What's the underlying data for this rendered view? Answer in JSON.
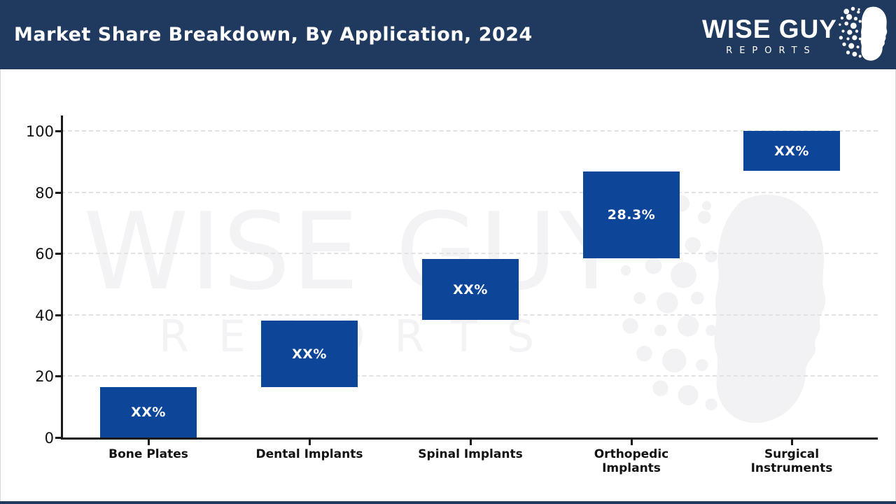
{
  "header": {
    "title": "Market Share Breakdown, By Application, 2024",
    "logo": {
      "line1": "WISE GUY",
      "line2": "REPORTS"
    }
  },
  "watermark": {
    "line1": "WISE GUY",
    "line2": "REPORTS"
  },
  "colors": {
    "header_bg": "#20395f",
    "bar": "#0d4598",
    "gridline": "#e2e2e2",
    "axis": "#1a1a1a",
    "bar_label": "#ffffff",
    "watermark": "#f3f3f5"
  },
  "chart_data": {
    "type": "bar",
    "subtype": "waterfall (floating segment bars stacking to 100%)",
    "title": "Market Share Breakdown, By Application, 2024",
    "xlabel": "",
    "ylabel": "",
    "ylim": [
      0,
      100
    ],
    "yticks": [
      0,
      20,
      40,
      60,
      80,
      100
    ],
    "grid": "horizontal dashed",
    "legend": "none",
    "categories": [
      "Bone Plates",
      "Dental Implants",
      "Spinal Implants",
      "Orthopedic Implants",
      "Surgical Instruments"
    ],
    "category_lines": [
      [
        "Bone Plates"
      ],
      [
        "Dental Implants"
      ],
      [
        "Spinal Implants"
      ],
      [
        "Orthopedic",
        "Implants"
      ],
      [
        "Surgical",
        "Instruments"
      ]
    ],
    "bars": [
      {
        "category": "Bone Plates",
        "start": 0,
        "end": 16.4,
        "label": "XX%"
      },
      {
        "category": "Dental Implants",
        "start": 16.4,
        "end": 38.1,
        "label": "XX%"
      },
      {
        "category": "Spinal Implants",
        "start": 38.3,
        "end": 58.2,
        "label": "XX%"
      },
      {
        "category": "Orthopedic Implants",
        "start": 58.5,
        "end": 86.8,
        "label": "28.3%"
      },
      {
        "category": "Surgical Instruments",
        "start": 86.9,
        "end": 100,
        "label": "XX%"
      }
    ]
  }
}
